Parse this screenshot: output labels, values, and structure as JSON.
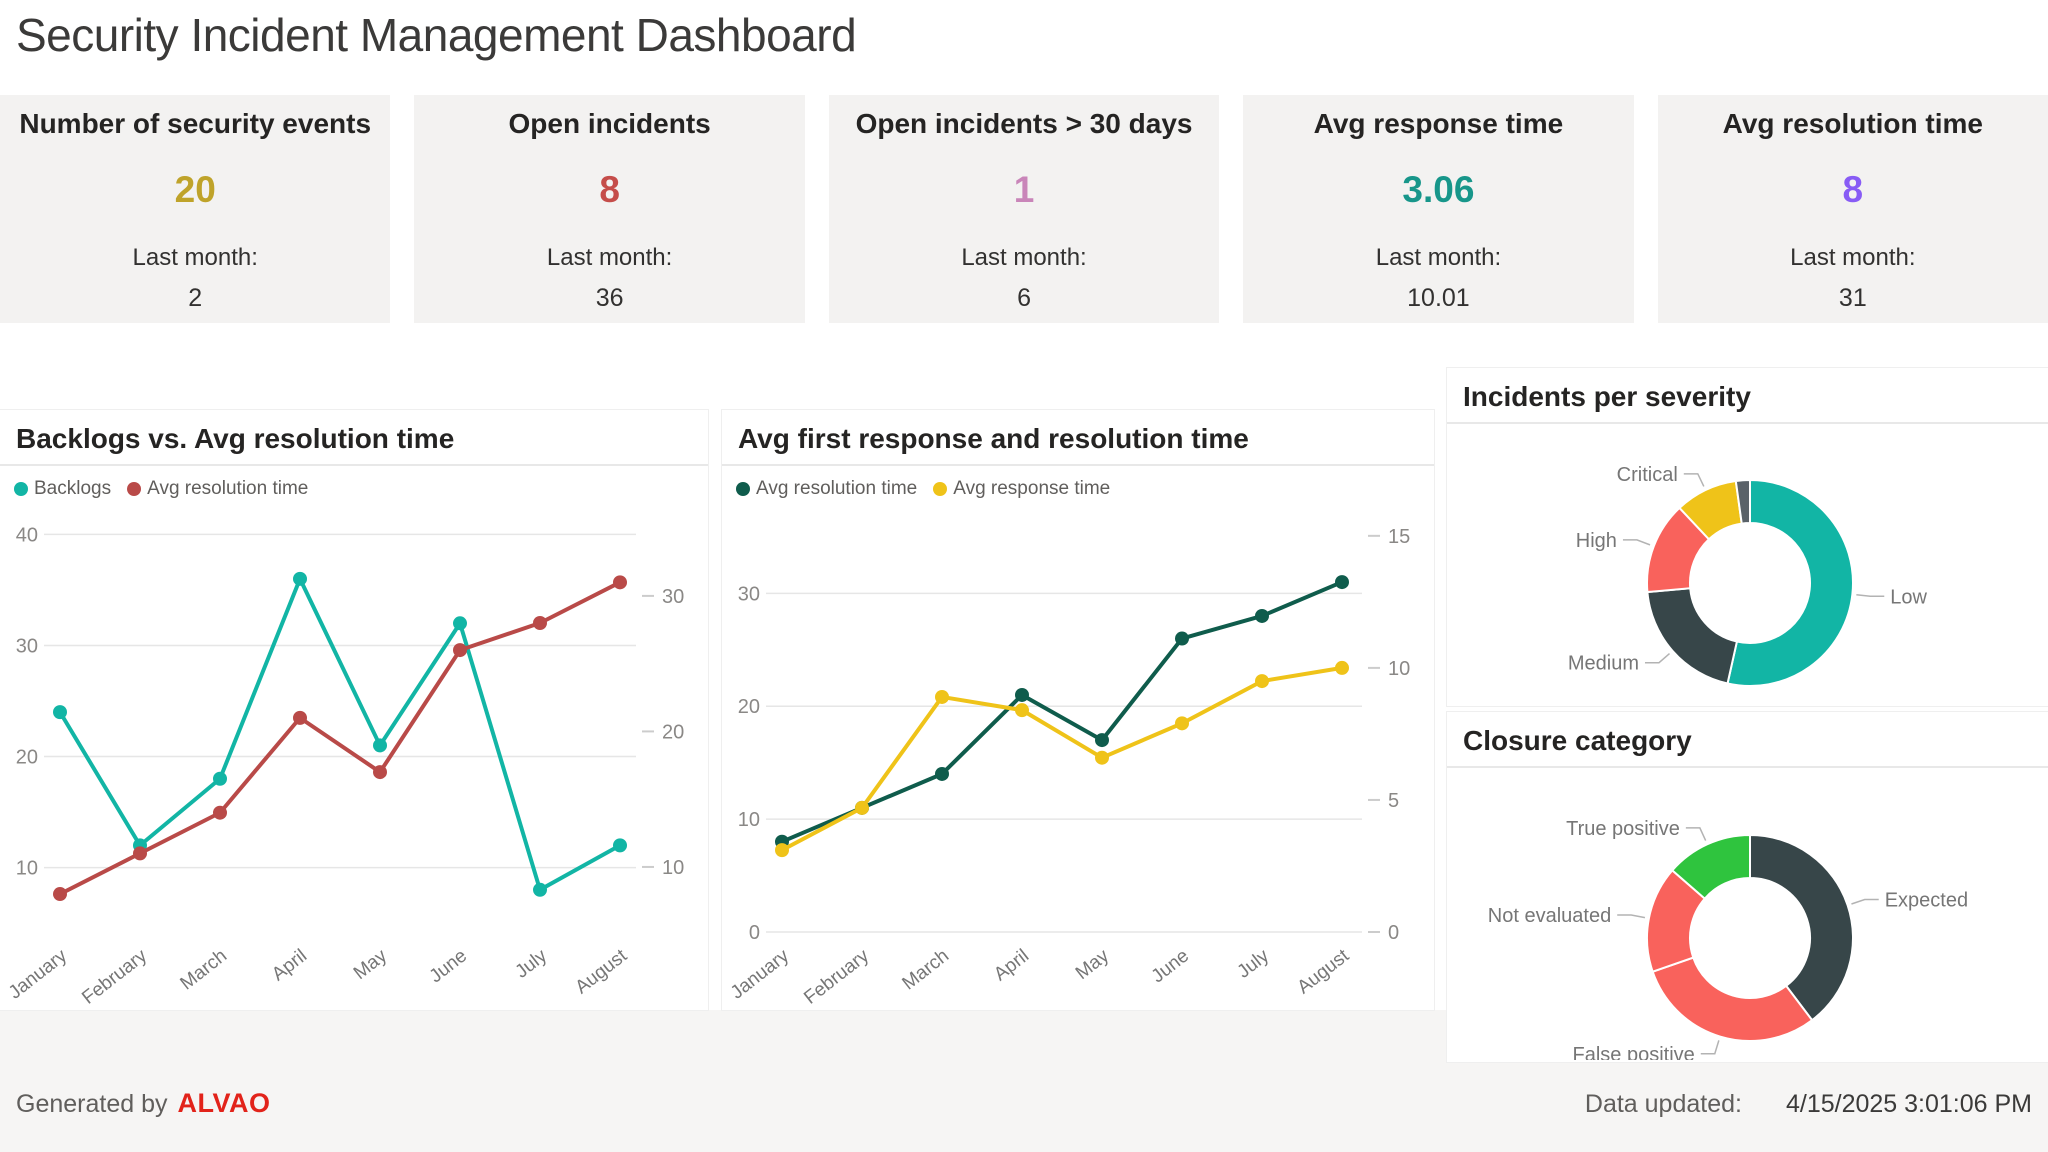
{
  "page": {
    "title": "Security Incident Management Dashboard",
    "footer": {
      "generated_by": "Generated by",
      "brand": "ALVAO",
      "brand_color": "#e2231a",
      "data_updated_label": "Data updated:",
      "data_updated_value": "4/15/2025 3:01:06 PM"
    }
  },
  "kpis": [
    {
      "title": "Number of security events",
      "value": "20",
      "value_color": "#bfa32a",
      "sub_label": "Last month:",
      "sub_value": "2"
    },
    {
      "title": "Open incidents",
      "value": "8",
      "value_color": "#c54d4a",
      "sub_label": "Last month:",
      "sub_value": "36"
    },
    {
      "title": "Open incidents > 30 days",
      "value": "1",
      "value_color": "#c985b9",
      "sub_label": "Last month:",
      "sub_value": "6"
    },
    {
      "title": "Avg response time",
      "value": "3.06",
      "value_color": "#17968a",
      "sub_label": "Last month:",
      "sub_value": "10.01"
    },
    {
      "title": "Avg resolution time",
      "value": "8",
      "value_color": "#885cf5",
      "sub_label": "Last month:",
      "sub_value": "31"
    }
  ],
  "chart_data": [
    {
      "id": "backlogs-vs-resolution",
      "type": "line",
      "title": "Backlogs vs. Avg resolution time",
      "categories": [
        "January",
        "February",
        "March",
        "April",
        "May",
        "June",
        "July",
        "August"
      ],
      "series": [
        {
          "name": "Backlogs",
          "color": "#12b5a5",
          "axis": "left",
          "values": [
            24,
            12,
            18,
            36,
            21,
            32,
            8,
            12
          ]
        },
        {
          "name": "Avg resolution time",
          "color": "#b94a48",
          "axis": "right",
          "values": [
            8,
            11,
            14,
            21,
            17,
            26,
            28,
            31
          ]
        }
      ],
      "left_axis": {
        "ticks": [
          40,
          30,
          20,
          10
        ],
        "min": 4.2,
        "max": 41.3
      },
      "right_axis": {
        "ticks": [
          30,
          20,
          10
        ],
        "min": 5.2,
        "max": 35.6
      },
      "grid": true,
      "legend_position": "top-left"
    },
    {
      "id": "response-and-resolution",
      "type": "line",
      "title": "Avg first response and resolution time",
      "categories": [
        "January",
        "February",
        "March",
        "April",
        "May",
        "June",
        "July",
        "August"
      ],
      "series": [
        {
          "name": "Avg resolution time",
          "color": "#0f5c4c",
          "axis": "left",
          "values": [
            8,
            11,
            14,
            21,
            17,
            26,
            28,
            31
          ]
        },
        {
          "name": "Avg response time",
          "color": "#efc319",
          "axis": "right",
          "values": [
            3.1,
            4.7,
            8.9,
            8.4,
            6.6,
            7.9,
            9.5,
            10.0
          ]
        }
      ],
      "left_axis": {
        "ticks": [
          30,
          20,
          10,
          0
        ],
        "min": 0,
        "max": 36.5
      },
      "right_axis": {
        "ticks": [
          15,
          10,
          5,
          0
        ],
        "min": 0,
        "max": 15.6
      },
      "grid": true,
      "legend_position": "top-left"
    },
    {
      "id": "incidents-per-severity",
      "type": "donut",
      "title": "Incidents per severity",
      "slices": [
        {
          "label": "Low",
          "value_pct": 53.5,
          "color": "#12b5a5"
        },
        {
          "label": "Medium",
          "value_pct": 20.1,
          "color": "#374649"
        },
        {
          "label": "High",
          "value_pct": 14.4,
          "color": "#f9625c"
        },
        {
          "label": "Critical",
          "value_pct": 9.8,
          "color": "#efc319"
        },
        {
          "label": "",
          "value_pct": 2.2,
          "color": "#5a6269"
        }
      ]
    },
    {
      "id": "closure-category",
      "type": "donut",
      "title": "Closure category",
      "slices": [
        {
          "label": "Expected",
          "value_pct": 39.7,
          "color": "#374649"
        },
        {
          "label": "False positive",
          "value_pct": 30.0,
          "color": "#f9625c"
        },
        {
          "label": "Not evaluated",
          "value_pct": 16.7,
          "color": "#f9625c"
        },
        {
          "label": "True positive",
          "value_pct": 13.6,
          "color": "#2fc43e"
        }
      ]
    }
  ]
}
